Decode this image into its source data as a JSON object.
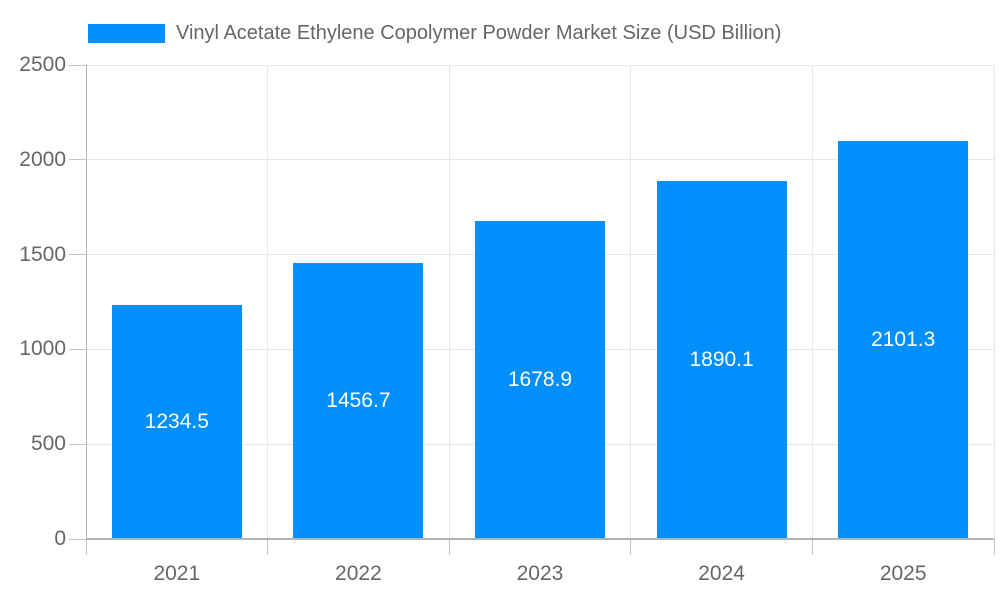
{
  "legend": {
    "label": "Vinyl Acetate Ethylene Copolymer Powder Market Size (USD Billion)"
  },
  "chart_data": {
    "type": "bar",
    "title": "Vinyl Acetate Ethylene Copolymer Powder Market Size (USD Billion)",
    "categories": [
      "2021",
      "2022",
      "2023",
      "2024",
      "2025"
    ],
    "series": [
      {
        "name": "Vinyl Acetate Ethylene Copolymer Powder Market Size (USD Billion)",
        "values": [
          1234.5,
          1456.7,
          1678.9,
          1890.1,
          2101.3
        ]
      }
    ],
    "data_labels": [
      "1234.5",
      "1456.7",
      "1678.9",
      "1890.1",
      "2101.3"
    ],
    "y_ticks": [
      0,
      500,
      1000,
      1500,
      2000,
      2500
    ],
    "y_tick_labels": [
      "0",
      "500",
      "1000",
      "1500",
      "2000",
      "2500"
    ],
    "ylim": [
      0,
      2500
    ],
    "xlabel": "",
    "ylabel": "",
    "grid": true,
    "legend_position": "top",
    "colors": {
      "bar": "#008FFB",
      "grid": "#e7e7e7",
      "axis": "#b3b3b3",
      "tick": "#c4c4c4",
      "label": "#666666",
      "data_label": "#ffffff",
      "background": "#ffffff"
    }
  }
}
